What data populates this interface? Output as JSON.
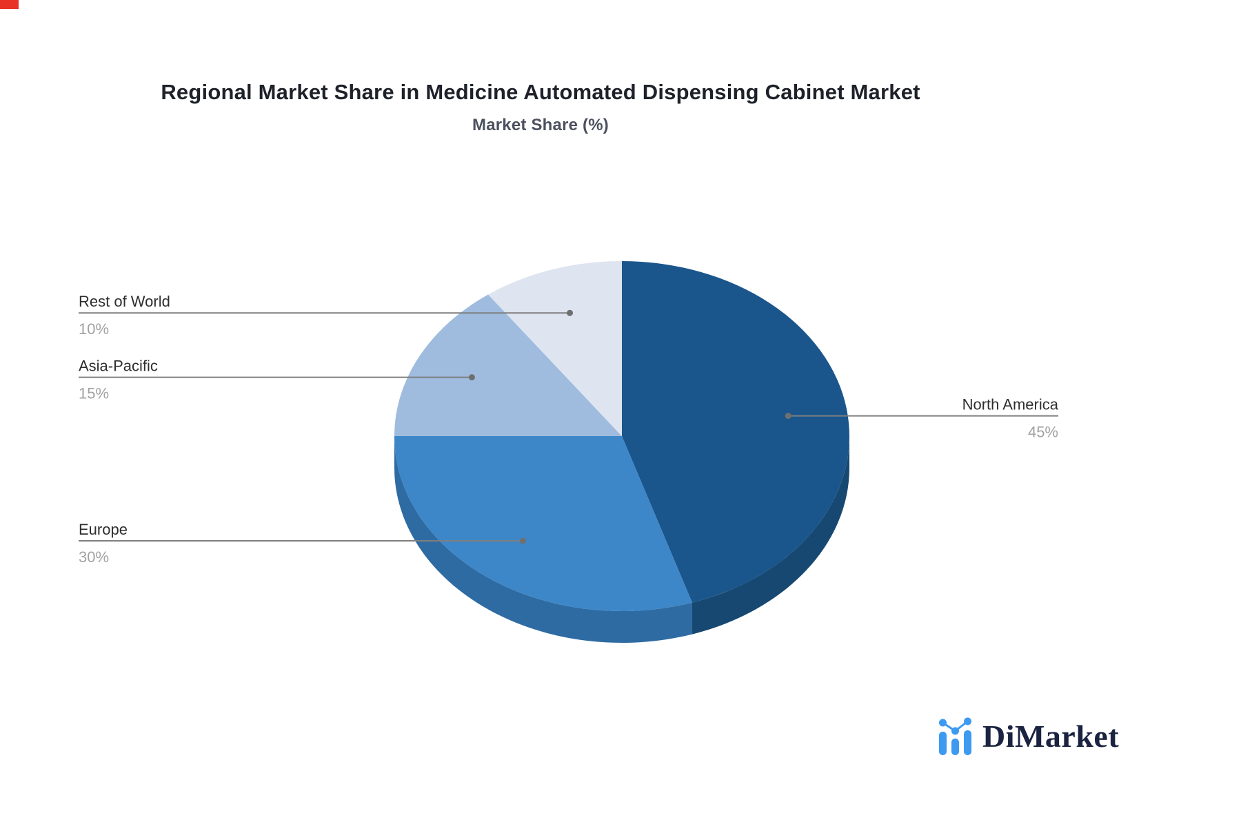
{
  "chart_data": {
    "type": "pie",
    "style": "3d",
    "title": "Regional Market Share in Medicine Automated Dispensing Cabinet Market",
    "subtitle": "Market Share (%)",
    "unit": "%",
    "start_angle_deg": 90,
    "direction": "clockwise",
    "labels": [
      "North America",
      "Europe",
      "Asia-Pacific",
      "Rest of World"
    ],
    "values": [
      45,
      30,
      15,
      10
    ],
    "colors": [
      "#1A568C",
      "#3D87C8",
      "#9FBCDE",
      "#DEE4F0"
    ],
    "side_colors": [
      "#164872",
      "#2E6BA3",
      null,
      null
    ],
    "label_style": "leader-lines",
    "leader_line_color": "#7F7F7F",
    "leader_dot_color": "#6F6F6F",
    "label_text_color": "#2E2E2E",
    "value_text_color": "#A2A2A2",
    "legend_position": "none"
  },
  "brand": {
    "name": "DiMarket",
    "icon": "bar-line-chart-icon",
    "icon_color": "#3D9AF1",
    "text_color": "#1A2340"
  },
  "corner_marker": {
    "color": "#E93226"
  }
}
